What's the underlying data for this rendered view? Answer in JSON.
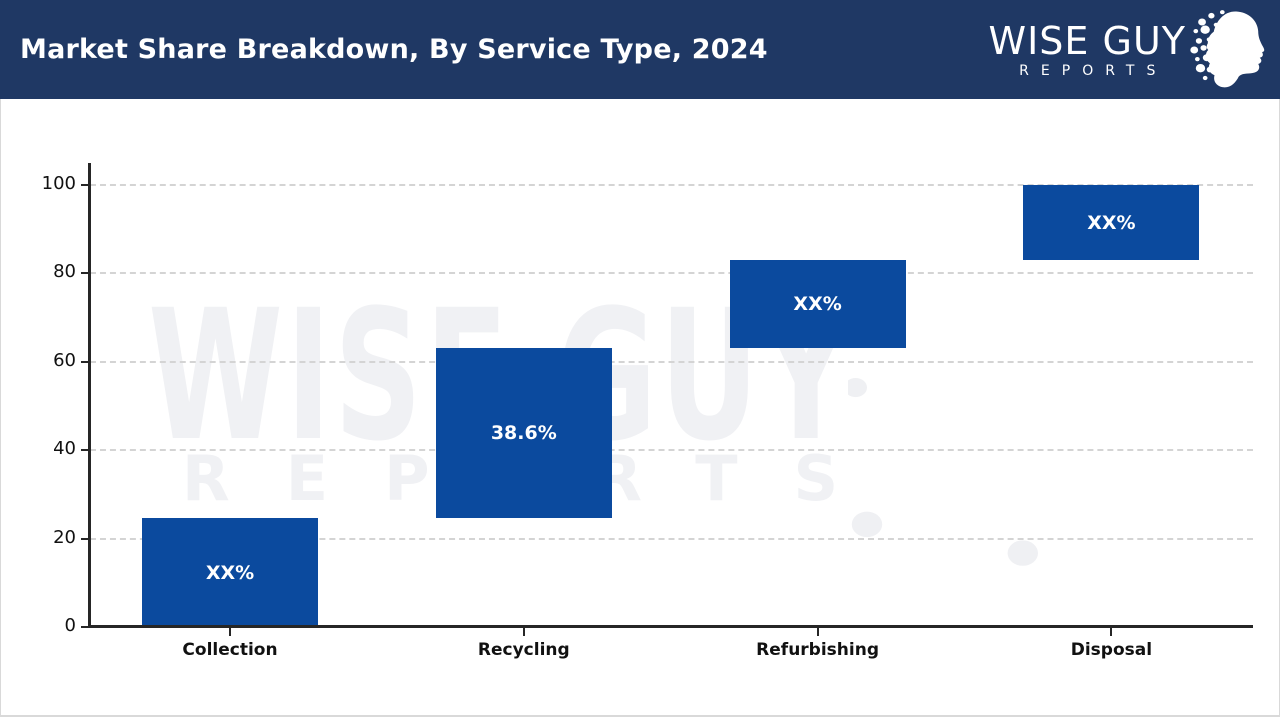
{
  "header": {
    "title": "Market Share Breakdown, By Service Type, 2024",
    "logo": {
      "line1": "WISE GUY",
      "line2": "REPORTS"
    },
    "background_color": "#1f3864"
  },
  "watermark": {
    "line1": "WISE GUY",
    "line2": "REPORTS"
  },
  "chart_data": {
    "type": "bar",
    "subtype": "floating-waterfall",
    "title": "Market Share Breakdown, By Service Type, 2024",
    "categories": [
      "Collection",
      "Recycling",
      "Refurbishing",
      "Disposal"
    ],
    "bars": [
      {
        "category": "Collection",
        "start": 0,
        "end": 24.6,
        "label": "XX%"
      },
      {
        "category": "Recycling",
        "start": 24.6,
        "end": 63.2,
        "label": "38.6%",
        "value": 38.6
      },
      {
        "category": "Refurbishing",
        "start": 63.2,
        "end": 83.0,
        "label": "XX%"
      },
      {
        "category": "Disposal",
        "start": 83.0,
        "end": 100,
        "label": "XX%"
      }
    ],
    "yticks": [
      0,
      20,
      40,
      60,
      80,
      100
    ],
    "ylim": [
      0,
      100
    ],
    "xlabel": "",
    "ylabel": "",
    "bar_color": "#0b4a9e",
    "grid": "horizontal-dashed",
    "legend": "none"
  }
}
